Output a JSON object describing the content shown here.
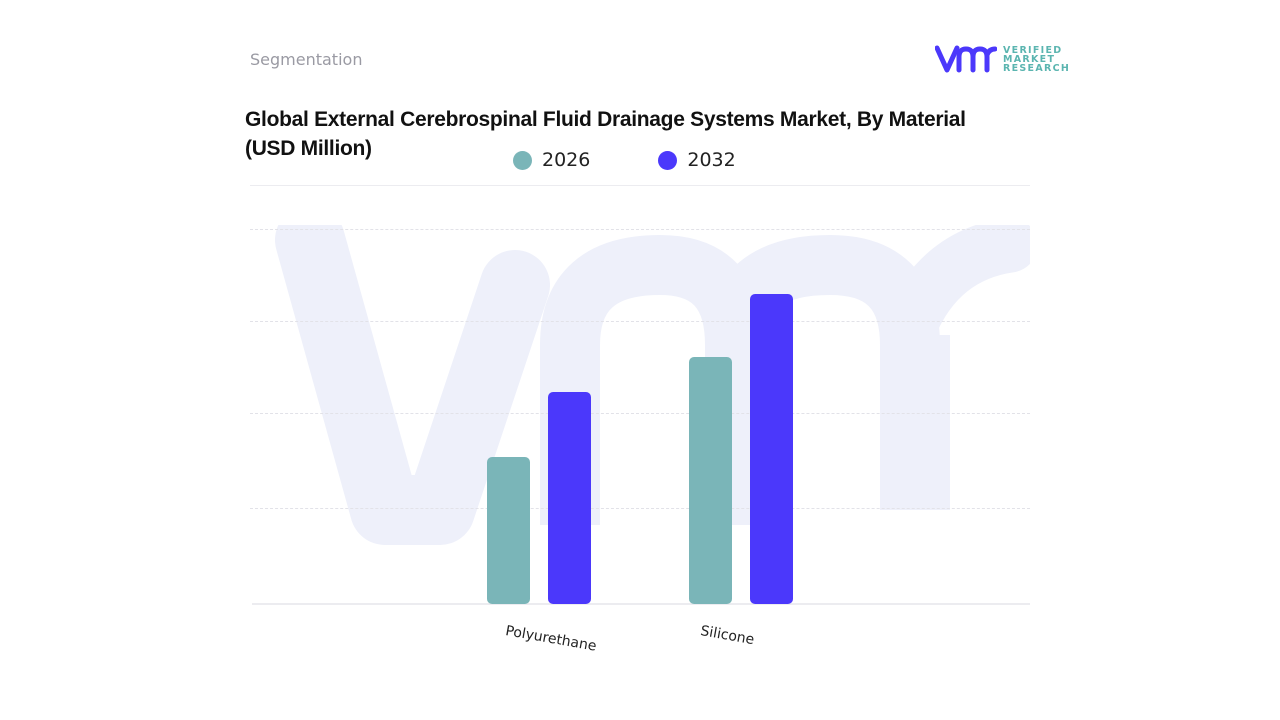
{
  "header": {
    "section_label": "Segmentation",
    "logo": {
      "mark": "vmr",
      "lines": [
        "VERIFIED",
        "MARKET",
        "RESEARCH"
      ],
      "registered": "®"
    }
  },
  "chart_title": "Global External Cerebrospinal Fluid Drainage Systems Market, By Material (USD Million)",
  "colors": {
    "series_2026": "#7ab5b8",
    "series_2032": "#4b38fb",
    "watermark": "#eef0fa"
  },
  "legend": [
    {
      "label": "2026",
      "color": "#7ab5b8"
    },
    {
      "label": "2032",
      "color": "#4b38fb"
    }
  ],
  "chart_data": {
    "type": "bar",
    "title": "Global External Cerebrospinal Fluid Drainage Systems Market, By Material (USD Million)",
    "categories": [
      "Polyurethane",
      "Silicone"
    ],
    "series": [
      {
        "name": "2026",
        "values": [
          147,
          247
        ]
      },
      {
        "name": "2032",
        "values": [
          212,
          310
        ]
      }
    ],
    "value_units": "relative (no axis tick labels shown; values estimated from bar pixel heights)",
    "xlabel": "",
    "ylabel": "",
    "ylim": [
      0,
      375
    ],
    "gridlines": [
      0,
      96,
      191,
      283,
      375
    ],
    "grid": true,
    "legend_position": "top",
    "x_tick_rotation": 10
  }
}
